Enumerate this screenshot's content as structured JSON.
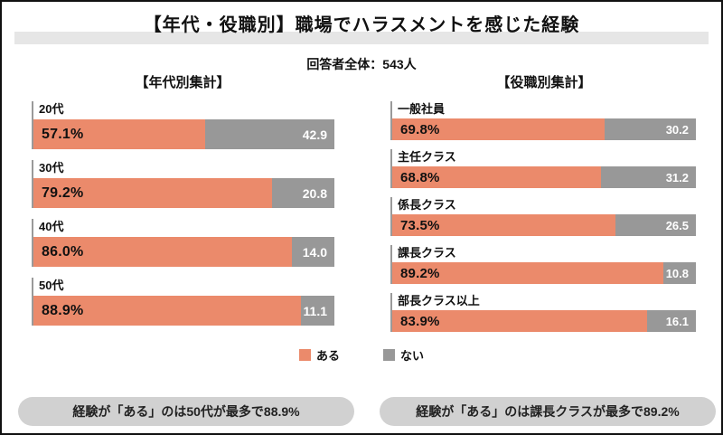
{
  "page": {
    "title": "【年代・役職別】職場でハラスメントを感じた経験",
    "subtitle": "回答者全体：543人"
  },
  "colors": {
    "aru": "#EB8A6B",
    "nai": "#989898",
    "title_band": "#E6E6E6",
    "callout_bg": "#D1D1D1"
  },
  "legend": {
    "aru": "ある",
    "nai": "ない"
  },
  "chart_data": [
    {
      "type": "bar",
      "orientation": "horizontal",
      "stacked": true,
      "title": "【年代別集計】",
      "categories": [
        "20代",
        "30代",
        "40代",
        "50代"
      ],
      "series": [
        {
          "name": "ある",
          "values": [
            57.1,
            79.2,
            86.0,
            88.9
          ]
        },
        {
          "name": "ない",
          "values": [
            42.9,
            20.8,
            14.0,
            11.1
          ]
        }
      ],
      "value_labels": {
        "aru": [
          "57.1%",
          "79.2%",
          "86.0%",
          "88.9%"
        ],
        "nai": [
          "42.9",
          "20.8",
          "14.0",
          "11.1"
        ]
      },
      "xlim": [
        0,
        100
      ],
      "grid": false,
      "annotation": "経験が「ある」のは50代が最多で88.9%"
    },
    {
      "type": "bar",
      "orientation": "horizontal",
      "stacked": true,
      "title": "【役職別集計】",
      "categories": [
        "一般社員",
        "主任クラス",
        "係長クラス",
        "課長クラス",
        "部長クラス以上"
      ],
      "series": [
        {
          "name": "ある",
          "values": [
            69.8,
            68.8,
            73.5,
            89.2,
            83.9
          ]
        },
        {
          "name": "ない",
          "values": [
            30.2,
            31.2,
            26.5,
            10.8,
            16.1
          ]
        }
      ],
      "value_labels": {
        "aru": [
          "69.8%",
          "68.8%",
          "73.5%",
          "89.2%",
          "83.9%"
        ],
        "nai": [
          "30.2",
          "31.2",
          "26.5",
          "10.8",
          "16.1"
        ]
      },
      "xlim": [
        0,
        100
      ],
      "grid": false,
      "annotation": "経験が「ある」のは課長クラスが最多で89.2%"
    }
  ]
}
